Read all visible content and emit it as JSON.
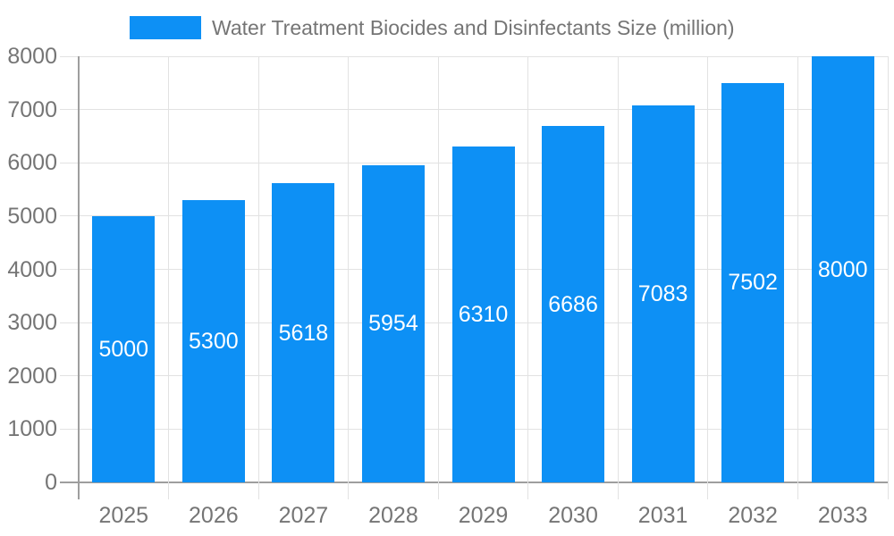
{
  "chart_data": {
    "type": "bar",
    "title": "Water Treatment Biocides and Disinfectants Size (million)",
    "legend_position": "top",
    "categories": [
      "2025",
      "2026",
      "2027",
      "2028",
      "2029",
      "2030",
      "2031",
      "2032",
      "2033"
    ],
    "values": [
      5000,
      5300,
      5618,
      5954,
      6310,
      6686,
      7083,
      7502,
      8000
    ],
    "bar_value_labels": [
      "5000",
      "5300",
      "5618",
      "5954",
      "6310",
      "6686",
      "7083",
      "7502",
      "8000"
    ],
    "xlabel": "",
    "ylabel": "",
    "ylim": [
      0,
      8000
    ],
    "ytick_step": 1000,
    "yticks": [
      "0",
      "1000",
      "2000",
      "3000",
      "4000",
      "5000",
      "6000",
      "7000",
      "8000"
    ],
    "grid": true,
    "bar_label_position": "center",
    "colors": {
      "bar": "#0d90f5",
      "grid": "#e2e2e2",
      "axis": "#9e9e9e",
      "tick_label": "#757575",
      "bar_label": "#ffffff",
      "background": "#ffffff"
    }
  }
}
